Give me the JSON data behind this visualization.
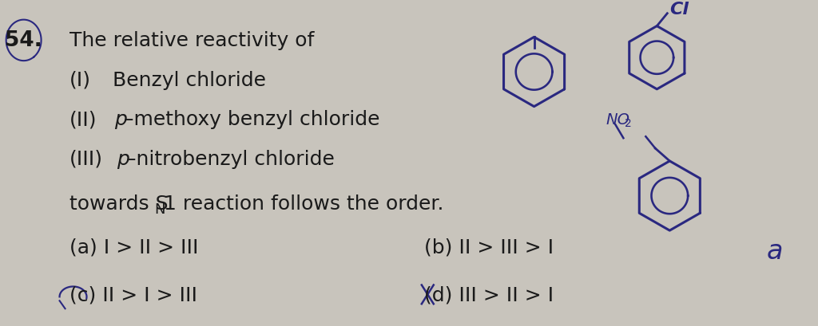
{
  "bg_color": "#c8c4bc",
  "text_color": "#1a1a1a",
  "struct_color": "#2a2880",
  "q_num": "54.",
  "q_intro": "The relative reactivity of",
  "item_I_num": "(I)",
  "item_I_text": "Benzyl chloride",
  "item_II_num": "(II)",
  "item_II_p": "p",
  "item_II_rest": "–methoxy benzyl chloride",
  "item_III_num": "(III)",
  "item_III_p": "p",
  "item_III_rest": "–nitrobenzyl chloride",
  "towards_pre": "towards S",
  "sub_N": "N",
  "towards_post": "1 reaction follows the order.",
  "opt_a": "(a) I > II > III",
  "opt_b": "(b) II > III > I",
  "opt_c": "(c) II > I > III",
  "opt_d": "(d) III > II > I",
  "NO2_label": "NO",
  "sub_2": "2",
  "Cl_label": "Cl",
  "a_label": "a",
  "figsize": [
    10.24,
    4.1
  ],
  "dpi": 100
}
